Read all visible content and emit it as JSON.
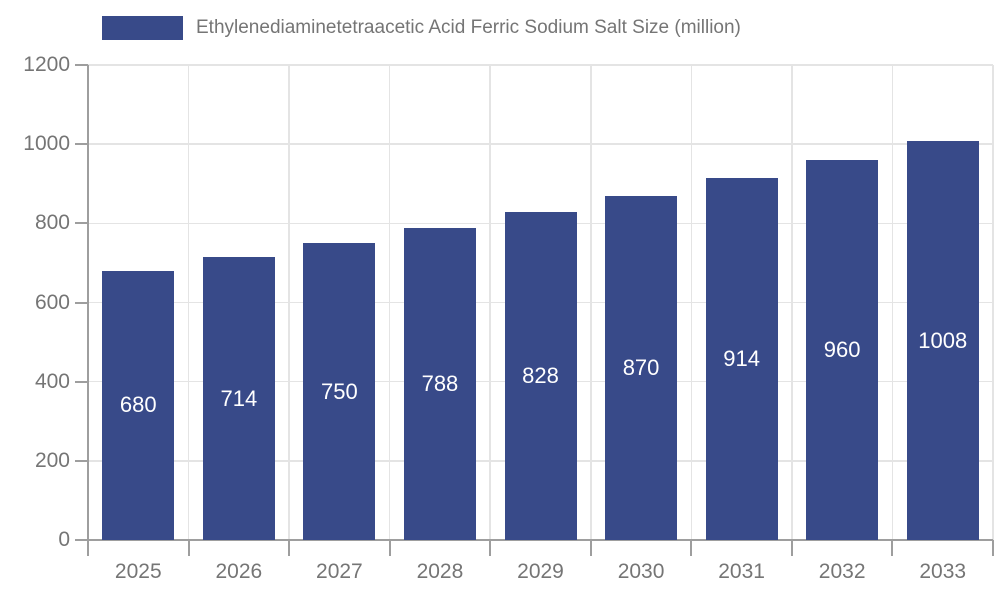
{
  "chart_data": {
    "type": "bar",
    "title": "Ethylenediaminetetraacetic Acid Ferric Sodium Salt Size (million)",
    "categories": [
      "2025",
      "2026",
      "2027",
      "2028",
      "2029",
      "2030",
      "2031",
      "2032",
      "2033"
    ],
    "values": [
      680,
      714,
      750,
      788,
      828,
      870,
      914,
      960,
      1008
    ],
    "xlabel": "",
    "ylabel": "",
    "ylim": [
      0,
      1200
    ],
    "yticks": [
      0,
      200,
      400,
      600,
      800,
      1000,
      1200
    ],
    "grid": true,
    "legend_position": "top-left",
    "colors": {
      "bar": "#384a89",
      "bar_label": "#ffffff",
      "axis_text": "#757575",
      "axis_line": "#9e9e9e",
      "gridline": "#e4e4e4",
      "background": "#ffffff"
    }
  }
}
